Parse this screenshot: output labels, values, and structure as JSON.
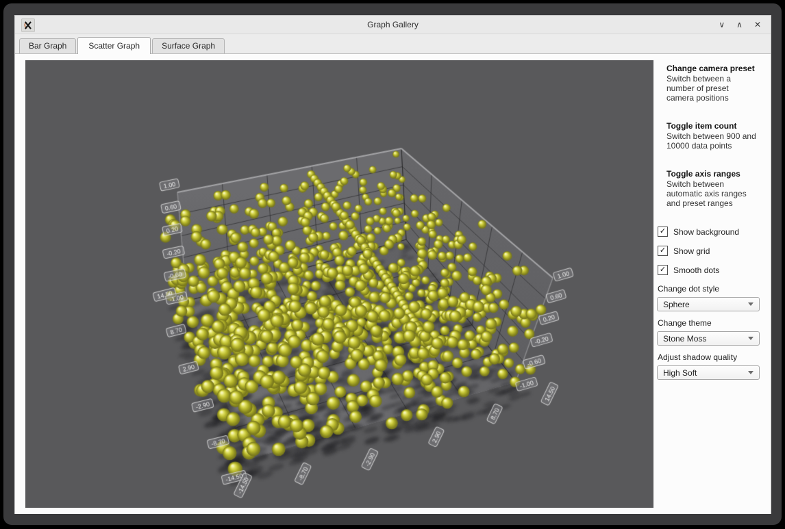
{
  "window": {
    "title": "Graph Gallery",
    "controls": [
      {
        "name": "minimize",
        "glyph": "∨"
      },
      {
        "name": "maximize",
        "glyph": "∧"
      },
      {
        "name": "close",
        "glyph": "✕"
      }
    ]
  },
  "tabs": [
    {
      "label": "Bar Graph"
    },
    {
      "label": "Scatter Graph"
    },
    {
      "label": "Surface Graph"
    }
  ],
  "sidebar": {
    "sections": [
      {
        "title": "Change camera preset",
        "lines": [
          "Switch between a",
          "number of preset",
          "camera positions"
        ]
      },
      {
        "title": "Toggle item count",
        "lines": [
          "Switch between 900 and",
          "10000 data points"
        ]
      },
      {
        "title": "Toggle axis ranges",
        "lines": [
          "Switch between",
          "automatic axis ranges",
          "and preset ranges"
        ]
      }
    ],
    "checkboxes": [
      {
        "label": "Show background",
        "checked": true,
        "glyph": "✓"
      },
      {
        "label": "Show grid",
        "checked": true,
        "glyph": "✓"
      },
      {
        "label": "Smooth dots",
        "checked": true,
        "glyph": "✓"
      }
    ],
    "selects": [
      {
        "label": "Change dot style",
        "value": "Sphere"
      },
      {
        "label": "Change theme",
        "value": "Stone Moss"
      },
      {
        "label": "Adjust shadow quality",
        "value": "High Soft"
      }
    ]
  },
  "chart_data": {
    "type": "scatter",
    "projection": "3d",
    "item_count": 900,
    "point_style": "Sphere",
    "theme": "Stone Moss",
    "shadow_quality": "High Soft",
    "grid": true,
    "background_shown": true,
    "axes": {
      "x": {
        "min": -14.5,
        "max": 14.5,
        "tick_values": [
          14.5,
          8.7,
          2.9,
          -2.9,
          -8.7,
          -14.5
        ],
        "tick_labels": [
          "14.50",
          "8.70",
          "2.90",
          "-2.90",
          "-8.70",
          "-14.50"
        ]
      },
      "y": {
        "min": -1,
        "max": 1,
        "tick_values": [
          1,
          0.6,
          0.2,
          -0.2,
          -0.6,
          -1
        ],
        "tick_labels": [
          "1.00",
          "0.60",
          "0.20",
          "-0.20",
          "-0.60",
          "-1.00"
        ]
      },
      "z": {
        "min": -14.5,
        "max": 14.5,
        "tick_values": [
          -14.5,
          -8.7,
          -2.9,
          2.9,
          8.7,
          14.5
        ],
        "tick_labels": [
          "-14.50",
          "-8.70",
          "-2.90",
          "2.90",
          "8.70",
          "14.50"
        ]
      }
    },
    "series": [
      {
        "name": "scatter-points",
        "count": 900,
        "color": "#b6b62b",
        "style": "Sphere"
      }
    ],
    "colors": {
      "background": "#59595b",
      "floor_near": "#727275",
      "floor_far": "#606063",
      "wall_left_top": "#6b6b6e",
      "wall_left_bottom": "#616164",
      "wall_right_top": "#67676a",
      "wall_right_bottom": "#5e5e61",
      "grid_line": "rgba(30,30,32,0.60)",
      "rim_light": "rgba(195,195,198,0.75)",
      "point": "#b6b62b",
      "point_highlight": "#f4f4b6",
      "point_dark": "#73731a",
      "shadow": "rgba(28,28,30,0.30)",
      "label_text": "#ededed",
      "label_fill": "rgba(128,128,131,0.50)",
      "label_border": "rgba(226,226,226,0.85)"
    },
    "random_seed": 42,
    "random_count": 858,
    "line_feature": {
      "from": [
        13,
        1.0,
        2
      ],
      "to": [
        -9,
        -0.6,
        7
      ],
      "count": 42
    }
  }
}
